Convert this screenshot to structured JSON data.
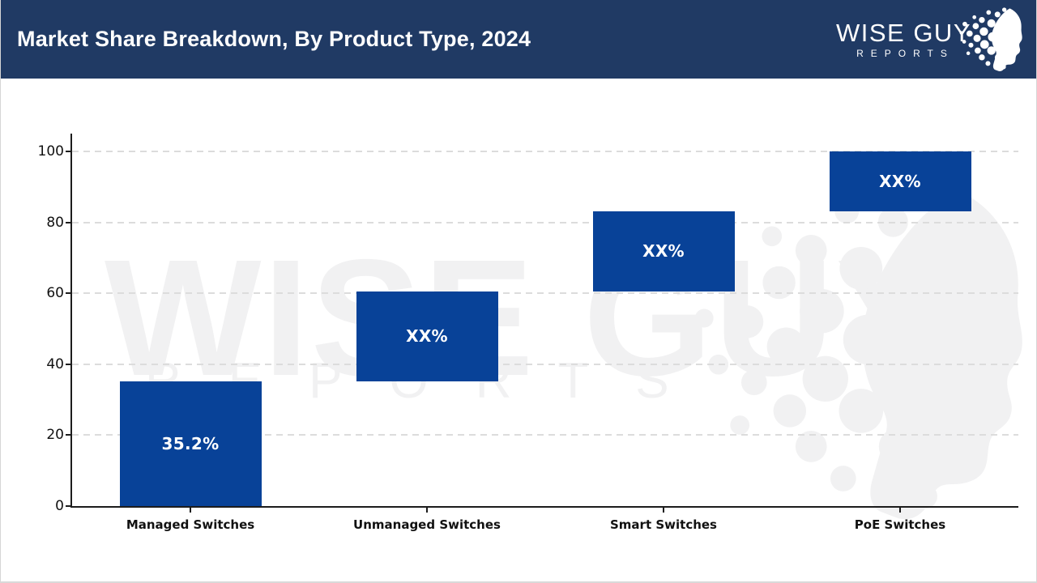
{
  "header": {
    "title": "Market Share Breakdown, By Product Type, 2024",
    "background_color": "#203A64",
    "logo": {
      "line1": "WISE GUY",
      "line2": "REPORTS"
    }
  },
  "watermark": {
    "line1": "WISE GUY",
    "line2": "REPORTS"
  },
  "chart_data": {
    "type": "bar",
    "subtype": "waterfall",
    "title": "Market Share Breakdown, By Product Type, 2024",
    "xlabel": "",
    "ylabel": "",
    "categories": [
      "Managed Switches",
      "Unmanaged Switches",
      "Smart Switches",
      "PoE Switches"
    ],
    "segments": [
      {
        "category": "Managed Switches",
        "start": 0,
        "end": 35.2,
        "value": 35.2,
        "label": "35.2%"
      },
      {
        "category": "Unmanaged Switches",
        "start": 35.2,
        "end": 60.5,
        "value": 25.3,
        "label": "XX%"
      },
      {
        "category": "Smart Switches",
        "start": 60.5,
        "end": 83.1,
        "value": 22.6,
        "label": "XX%"
      },
      {
        "category": "PoE Switches",
        "start": 83.1,
        "end": 100,
        "value": 16.9,
        "label": "XX%"
      }
    ],
    "y_ticks": [
      0,
      20,
      40,
      60,
      80,
      100
    ],
    "ylim": [
      0,
      105
    ],
    "grid": "horizontal-dashed",
    "legend": "none",
    "bar_color": "#084298",
    "bar_label_color": "#ffffff",
    "axis_color": "#1c1c1c",
    "grid_color": "#dcdcdc"
  }
}
